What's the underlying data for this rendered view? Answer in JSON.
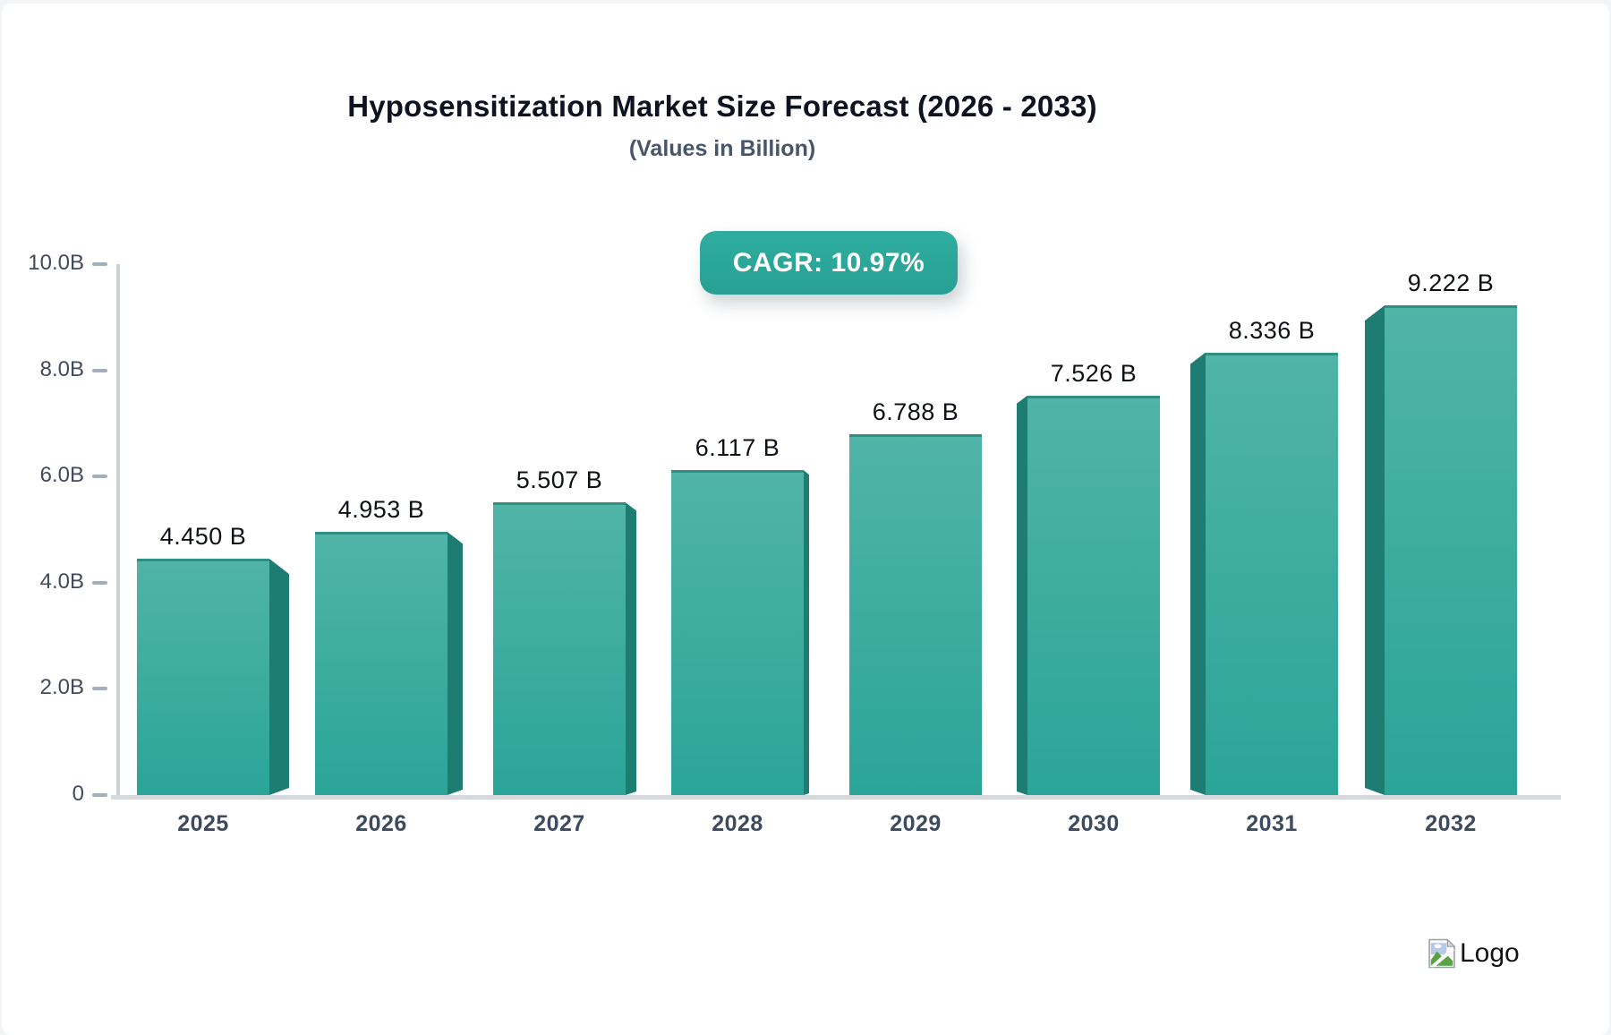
{
  "header": {
    "title": "Hyposensitization Market Size Forecast (2026 - 2033)",
    "subtitle": "(Values in Billion)",
    "cagr_badge": "CAGR: 10.97%"
  },
  "chart_data": {
    "type": "bar",
    "title": "Hyposensitization Market Size Forecast (2026 - 2033)",
    "subtitle": "(Values in Billion)",
    "cagr_label": "CAGR: 10.97%",
    "categories": [
      "2025",
      "2026",
      "2027",
      "2028",
      "2029",
      "2030",
      "2031",
      "2032"
    ],
    "values": [
      4.45,
      4.953,
      5.507,
      6.117,
      6.788,
      7.526,
      8.336,
      9.222
    ],
    "bar_labels": [
      "4.450 B",
      "4.953 B",
      "5.507 B",
      "6.117 B",
      "6.788 B",
      "7.526 B",
      "8.336 B",
      "9.222 B"
    ],
    "xlabel": "",
    "ylabel": "",
    "ylim": [
      0,
      10
    ],
    "yticks": {
      "values": [
        0,
        2,
        4,
        6,
        8,
        10
      ],
      "labels": [
        "0",
        "2.0B",
        "4.0B",
        "6.0B",
        "8.0B",
        "10.0B"
      ]
    },
    "grid": false,
    "legend": "none",
    "colors": {
      "bar_face_top": "#50b4a7",
      "bar_face_bottom": "#2aa598",
      "bar_top_edge": "#2e8f85",
      "bar_side_facet": "#1e7d72",
      "badge_background": "#2ba89b",
      "axis_line": "#ccd2da",
      "tick_label": "#414b59"
    }
  },
  "footer": {
    "logo_text": "Logo",
    "logo_icon": "broken-image-icon"
  }
}
